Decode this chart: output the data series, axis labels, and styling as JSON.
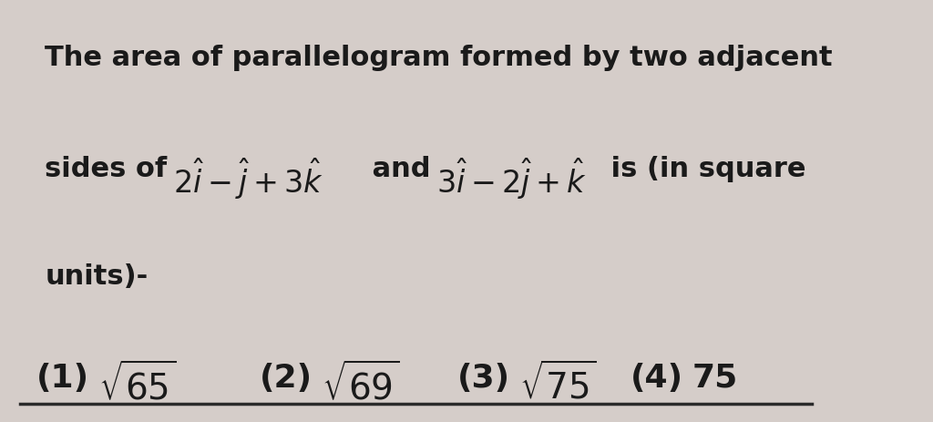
{
  "background_color": "#d5cdc9",
  "text_color": "#1a1a1a",
  "line1": "The area of parallelogram formed by two adjacent",
  "line2_pre": "sides of ",
  "line2_vec1": "$2\\hat{i}-\\hat{j}+3\\hat{k}$",
  "line2_mid": " and ",
  "line2_vec2": "$3\\hat{i}-2\\hat{j}+\\hat{k}$",
  "line2_post": " is (in square",
  "line3": "units)-",
  "opt1_num": "(1)",
  "opt1_expr": "$\\sqrt{65}$",
  "opt2_num": "(2)",
  "opt2_expr": "$\\sqrt{69}$",
  "opt3_num": "(3)",
  "opt3_expr": "$\\sqrt{75}$",
  "opt4_num": "(4)",
  "opt4_expr": "75",
  "font_size_main": 22,
  "font_size_opts": 26,
  "fig_width": 10.24,
  "fig_height": 4.63
}
